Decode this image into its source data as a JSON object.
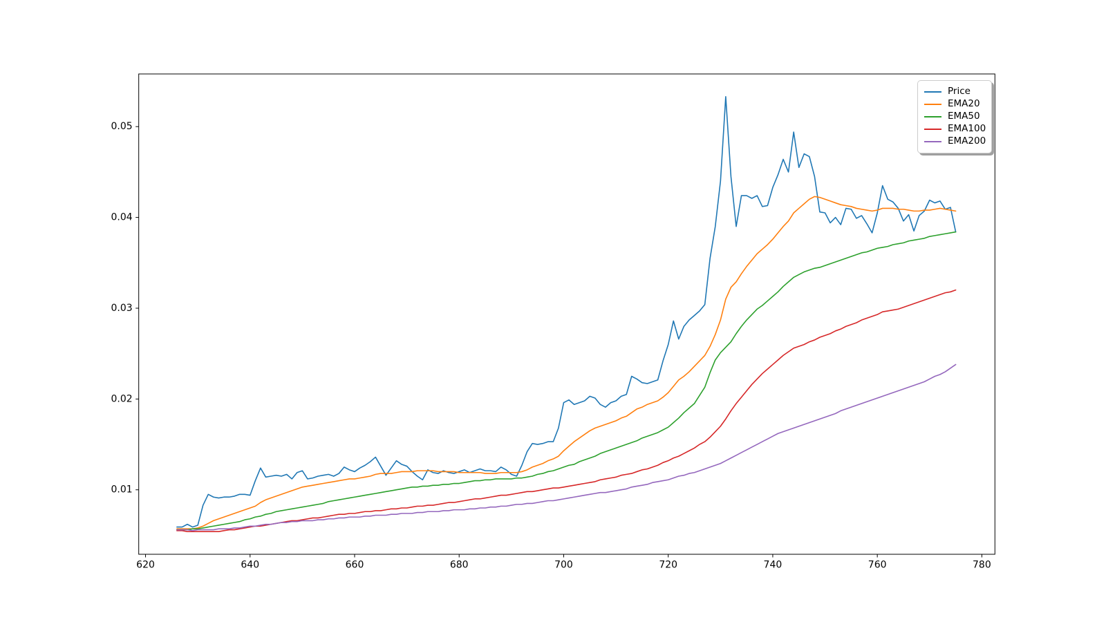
{
  "chart_data": {
    "type": "line",
    "title": "",
    "xlabel": "",
    "ylabel": "",
    "grid": false,
    "axis_color": "#000000",
    "background_color": "#ffffff",
    "xlim": [
      618.7,
      782.5
    ],
    "ylim": [
      0.0029,
      0.0558
    ],
    "xticks": [
      620,
      640,
      660,
      680,
      700,
      720,
      740,
      760,
      780
    ],
    "xtick_labels": [
      "620",
      "640",
      "660",
      "680",
      "700",
      "720",
      "740",
      "760",
      "780"
    ],
    "yticks": [
      0.01,
      0.02,
      0.03,
      0.04,
      0.05
    ],
    "ytick_labels": [
      "0.01",
      "0.02",
      "0.03",
      "0.04",
      "0.05"
    ],
    "legend": {
      "position": "upper right",
      "entries": [
        "Price",
        "EMA20",
        "EMA50",
        "EMA100",
        "EMA200"
      ]
    },
    "x": [
      626,
      627,
      628,
      629,
      630,
      631,
      632,
      633,
      634,
      635,
      636,
      637,
      638,
      639,
      640,
      641,
      642,
      643,
      644,
      645,
      646,
      647,
      648,
      649,
      650,
      651,
      652,
      653,
      654,
      655,
      656,
      657,
      658,
      659,
      660,
      661,
      662,
      663,
      664,
      665,
      666,
      667,
      668,
      669,
      670,
      671,
      672,
      673,
      674,
      675,
      676,
      677,
      678,
      679,
      680,
      681,
      682,
      683,
      684,
      685,
      686,
      687,
      688,
      689,
      690,
      691,
      692,
      693,
      694,
      695,
      696,
      697,
      698,
      699,
      700,
      701,
      702,
      703,
      704,
      705,
      706,
      707,
      708,
      709,
      710,
      711,
      712,
      713,
      714,
      715,
      716,
      717,
      718,
      719,
      720,
      721,
      722,
      723,
      724,
      725,
      726,
      727,
      728,
      729,
      730,
      731,
      732,
      733,
      734,
      735,
      736,
      737,
      738,
      739,
      740,
      741,
      742,
      743,
      744,
      745,
      746,
      747,
      748,
      749,
      750,
      751,
      752,
      753,
      754,
      755,
      756,
      757,
      758,
      759,
      760,
      761,
      762,
      763,
      764,
      765,
      766,
      767,
      768,
      769,
      770,
      771,
      772,
      773,
      774,
      775
    ],
    "series": [
      {
        "name": "Price",
        "color": "#1f77b4",
        "values": [
          0.0059,
          0.0059,
          0.0062,
          0.0059,
          0.0061,
          0.0083,
          0.0095,
          0.0092,
          0.0091,
          0.0092,
          0.0092,
          0.0093,
          0.0095,
          0.0095,
          0.0094,
          0.011,
          0.0124,
          0.0114,
          0.0115,
          0.0116,
          0.0115,
          0.0117,
          0.0112,
          0.0119,
          0.0121,
          0.0112,
          0.0113,
          0.0115,
          0.0116,
          0.0117,
          0.0115,
          0.0118,
          0.0125,
          0.0122,
          0.012,
          0.0124,
          0.0127,
          0.0131,
          0.0136,
          0.0126,
          0.0116,
          0.0124,
          0.0132,
          0.0128,
          0.0126,
          0.012,
          0.0115,
          0.0111,
          0.0122,
          0.0119,
          0.0118,
          0.0121,
          0.0119,
          0.0118,
          0.012,
          0.0122,
          0.0119,
          0.0121,
          0.0123,
          0.0121,
          0.0121,
          0.012,
          0.0125,
          0.0122,
          0.0117,
          0.0115,
          0.0127,
          0.0142,
          0.0151,
          0.015,
          0.0151,
          0.0153,
          0.0153,
          0.0168,
          0.0196,
          0.0199,
          0.0194,
          0.0196,
          0.0198,
          0.0203,
          0.0201,
          0.0194,
          0.0191,
          0.0196,
          0.0198,
          0.0203,
          0.0205,
          0.0225,
          0.0222,
          0.0218,
          0.0217,
          0.0219,
          0.0221,
          0.0242,
          0.026,
          0.0286,
          0.0266,
          0.028,
          0.0287,
          0.0292,
          0.0297,
          0.0304,
          0.0355,
          0.039,
          0.044,
          0.0533,
          0.0445,
          0.039,
          0.0424,
          0.0424,
          0.0421,
          0.0424,
          0.0412,
          0.0413,
          0.0433,
          0.0447,
          0.0464,
          0.045,
          0.0494,
          0.0455,
          0.047,
          0.0467,
          0.0445,
          0.0406,
          0.0405,
          0.0394,
          0.04,
          0.0392,
          0.041,
          0.0409,
          0.0399,
          0.0402,
          0.0393,
          0.0383,
          0.0405,
          0.0435,
          0.042,
          0.0417,
          0.041,
          0.0396,
          0.0403,
          0.0385,
          0.0402,
          0.0407,
          0.0419,
          0.0416,
          0.0418,
          0.0409,
          0.0411,
          0.0384
        ]
      },
      {
        "name": "EMA20",
        "color": "#ff7f0e",
        "values": [
          0.0057,
          0.0057,
          0.0057,
          0.0057,
          0.0058,
          0.006,
          0.0063,
          0.0066,
          0.0068,
          0.007,
          0.0072,
          0.0074,
          0.0076,
          0.0078,
          0.008,
          0.0082,
          0.0086,
          0.0089,
          0.0091,
          0.0093,
          0.0095,
          0.0097,
          0.0099,
          0.0101,
          0.0103,
          0.0104,
          0.0105,
          0.0106,
          0.0107,
          0.0108,
          0.0109,
          0.011,
          0.0111,
          0.0112,
          0.0112,
          0.0113,
          0.0114,
          0.0115,
          0.0117,
          0.0118,
          0.0118,
          0.0118,
          0.0119,
          0.012,
          0.012,
          0.012,
          0.0121,
          0.0121,
          0.0121,
          0.0121,
          0.012,
          0.012,
          0.012,
          0.012,
          0.0119,
          0.0119,
          0.0119,
          0.0119,
          0.0119,
          0.0118,
          0.0118,
          0.0118,
          0.0119,
          0.0119,
          0.0119,
          0.0119,
          0.012,
          0.0122,
          0.0125,
          0.0127,
          0.0129,
          0.0132,
          0.0134,
          0.0137,
          0.0143,
          0.0148,
          0.0153,
          0.0157,
          0.0161,
          0.0165,
          0.0168,
          0.017,
          0.0172,
          0.0174,
          0.0176,
          0.0179,
          0.0181,
          0.0185,
          0.0189,
          0.0191,
          0.0194,
          0.0196,
          0.0198,
          0.0202,
          0.0207,
          0.0214,
          0.0221,
          0.0225,
          0.023,
          0.0236,
          0.0242,
          0.0248,
          0.0258,
          0.0271,
          0.0287,
          0.031,
          0.0323,
          0.0329,
          0.0338,
          0.0346,
          0.0353,
          0.036,
          0.0365,
          0.037,
          0.0376,
          0.0383,
          0.039,
          0.0396,
          0.0405,
          0.041,
          0.0415,
          0.042,
          0.0423,
          0.0422,
          0.042,
          0.0418,
          0.0416,
          0.0414,
          0.0413,
          0.0412,
          0.041,
          0.0409,
          0.0408,
          0.0407,
          0.0408,
          0.041,
          0.041,
          0.041,
          0.0409,
          0.0409,
          0.0408,
          0.0407,
          0.0407,
          0.0408,
          0.0408,
          0.0409,
          0.041,
          0.0409,
          0.0408,
          0.0407
        ]
      },
      {
        "name": "EMA50",
        "color": "#2ca02c",
        "values": [
          0.0056,
          0.0056,
          0.0056,
          0.0057,
          0.0057,
          0.0058,
          0.0059,
          0.006,
          0.0061,
          0.0062,
          0.0063,
          0.0064,
          0.0065,
          0.0067,
          0.0068,
          0.007,
          0.0071,
          0.0073,
          0.0074,
          0.0076,
          0.0077,
          0.0078,
          0.0079,
          0.008,
          0.0081,
          0.0082,
          0.0083,
          0.0084,
          0.0085,
          0.0087,
          0.0088,
          0.0089,
          0.009,
          0.0091,
          0.0092,
          0.0093,
          0.0094,
          0.0095,
          0.0096,
          0.0097,
          0.0098,
          0.0099,
          0.01,
          0.0101,
          0.0102,
          0.0103,
          0.0103,
          0.0104,
          0.0104,
          0.0105,
          0.0105,
          0.0106,
          0.0106,
          0.0107,
          0.0107,
          0.0108,
          0.0109,
          0.011,
          0.011,
          0.0111,
          0.0111,
          0.0112,
          0.0112,
          0.0112,
          0.0112,
          0.0113,
          0.0113,
          0.0114,
          0.0115,
          0.0117,
          0.0118,
          0.012,
          0.0121,
          0.0123,
          0.0125,
          0.0127,
          0.0128,
          0.0131,
          0.0133,
          0.0135,
          0.0137,
          0.014,
          0.0142,
          0.0144,
          0.0146,
          0.0148,
          0.015,
          0.0152,
          0.0154,
          0.0157,
          0.0159,
          0.0161,
          0.0163,
          0.0166,
          0.0169,
          0.0174,
          0.0179,
          0.0185,
          0.019,
          0.0195,
          0.0204,
          0.0213,
          0.0229,
          0.0243,
          0.0251,
          0.0257,
          0.0263,
          0.0272,
          0.028,
          0.0287,
          0.0293,
          0.0299,
          0.0303,
          0.0308,
          0.0313,
          0.0318,
          0.0324,
          0.0329,
          0.0334,
          0.0337,
          0.034,
          0.0342,
          0.0344,
          0.0345,
          0.0347,
          0.0349,
          0.0351,
          0.0353,
          0.0355,
          0.0357,
          0.0359,
          0.0361,
          0.0362,
          0.0364,
          0.0366,
          0.0367,
          0.0368,
          0.037,
          0.0371,
          0.0372,
          0.0374,
          0.0375,
          0.0376,
          0.0377,
          0.0379,
          0.038,
          0.0381,
          0.0382,
          0.0383,
          0.0384
        ]
      },
      {
        "name": "EMA100",
        "color": "#d62728",
        "values": [
          0.0055,
          0.0055,
          0.0054,
          0.0054,
          0.0054,
          0.0054,
          0.0054,
          0.0054,
          0.0054,
          0.0055,
          0.0056,
          0.0056,
          0.0057,
          0.0058,
          0.0059,
          0.006,
          0.006,
          0.0061,
          0.0062,
          0.0063,
          0.0064,
          0.0065,
          0.0066,
          0.0066,
          0.0067,
          0.0068,
          0.0069,
          0.0069,
          0.007,
          0.0071,
          0.0072,
          0.0073,
          0.0073,
          0.0074,
          0.0074,
          0.0075,
          0.0076,
          0.0076,
          0.0077,
          0.0077,
          0.0078,
          0.0079,
          0.0079,
          0.008,
          0.008,
          0.0081,
          0.0082,
          0.0082,
          0.0083,
          0.0083,
          0.0084,
          0.0085,
          0.0086,
          0.0086,
          0.0087,
          0.0088,
          0.0089,
          0.009,
          0.009,
          0.0091,
          0.0092,
          0.0093,
          0.0094,
          0.0094,
          0.0095,
          0.0096,
          0.0097,
          0.0098,
          0.0098,
          0.0099,
          0.01,
          0.0101,
          0.0102,
          0.0102,
          0.0103,
          0.0104,
          0.0105,
          0.0106,
          0.0107,
          0.0108,
          0.0109,
          0.0111,
          0.0112,
          0.0113,
          0.0114,
          0.0116,
          0.0117,
          0.0118,
          0.012,
          0.0122,
          0.0123,
          0.0125,
          0.0127,
          0.013,
          0.0132,
          0.0135,
          0.0137,
          0.014,
          0.0143,
          0.0146,
          0.015,
          0.0153,
          0.0158,
          0.0164,
          0.017,
          0.0178,
          0.0187,
          0.0195,
          0.0202,
          0.0209,
          0.0216,
          0.0222,
          0.0228,
          0.0233,
          0.0238,
          0.0243,
          0.0248,
          0.0252,
          0.0256,
          0.0258,
          0.026,
          0.0263,
          0.0265,
          0.0268,
          0.027,
          0.0272,
          0.0275,
          0.0277,
          0.028,
          0.0282,
          0.0284,
          0.0287,
          0.0289,
          0.0291,
          0.0293,
          0.0296,
          0.0297,
          0.0298,
          0.0299,
          0.0301,
          0.0303,
          0.0305,
          0.0307,
          0.0309,
          0.0311,
          0.0313,
          0.0315,
          0.0317,
          0.0318,
          0.032
        ]
      },
      {
        "name": "EMA200",
        "color": "#9467bd",
        "values": [
          0.0056,
          0.0056,
          0.0056,
          0.0055,
          0.0056,
          0.0056,
          0.0056,
          0.0056,
          0.0057,
          0.0057,
          0.0057,
          0.0058,
          0.0058,
          0.0059,
          0.006,
          0.006,
          0.0061,
          0.0062,
          0.0062,
          0.0063,
          0.0064,
          0.0064,
          0.0065,
          0.0065,
          0.0066,
          0.0066,
          0.0066,
          0.0067,
          0.0067,
          0.0068,
          0.0068,
          0.0069,
          0.0069,
          0.007,
          0.007,
          0.007,
          0.0071,
          0.0071,
          0.0072,
          0.0072,
          0.0072,
          0.0073,
          0.0073,
          0.0074,
          0.0074,
          0.0074,
          0.0075,
          0.0075,
          0.0076,
          0.0076,
          0.0076,
          0.0077,
          0.0077,
          0.0078,
          0.0078,
          0.0078,
          0.0079,
          0.0079,
          0.008,
          0.008,
          0.0081,
          0.0081,
          0.0082,
          0.0082,
          0.0083,
          0.0084,
          0.0084,
          0.0085,
          0.0085,
          0.0086,
          0.0087,
          0.0088,
          0.0088,
          0.0089,
          0.009,
          0.0091,
          0.0092,
          0.0093,
          0.0094,
          0.0095,
          0.0096,
          0.0097,
          0.0097,
          0.0098,
          0.0099,
          0.01,
          0.0101,
          0.0103,
          0.0104,
          0.0105,
          0.0106,
          0.0108,
          0.0109,
          0.011,
          0.0111,
          0.0113,
          0.0115,
          0.0116,
          0.0118,
          0.0119,
          0.0121,
          0.0123,
          0.0125,
          0.0127,
          0.0129,
          0.0132,
          0.0135,
          0.0138,
          0.0141,
          0.0144,
          0.0147,
          0.015,
          0.0153,
          0.0156,
          0.0159,
          0.0162,
          0.0164,
          0.0166,
          0.0168,
          0.017,
          0.0172,
          0.0174,
          0.0176,
          0.0178,
          0.018,
          0.0182,
          0.0184,
          0.0187,
          0.0189,
          0.0191,
          0.0193,
          0.0195,
          0.0197,
          0.0199,
          0.0201,
          0.0203,
          0.0205,
          0.0207,
          0.0209,
          0.0211,
          0.0213,
          0.0215,
          0.0217,
          0.0219,
          0.0222,
          0.0225,
          0.0227,
          0.023,
          0.0234,
          0.0238
        ]
      }
    ]
  }
}
